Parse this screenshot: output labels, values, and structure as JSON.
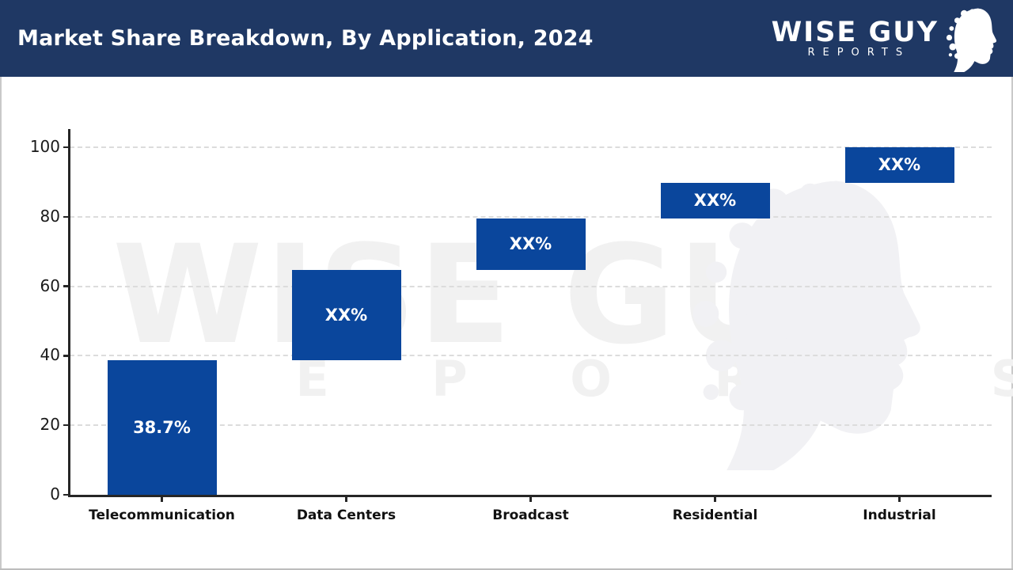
{
  "header": {
    "title": "Market Share Breakdown, By Application, 2024",
    "logo": {
      "line1": "WISE GUY",
      "line2": "REPORTS"
    }
  },
  "watermark": {
    "line1": "WISE GUY",
    "line2": "R E P O R T S"
  },
  "colors": {
    "header_bg": "#1f3864",
    "bar": "#0a469c",
    "grid": "#dcdcdc",
    "axis": "#262626",
    "watermark": "#f1f1f1",
    "value_label": "#ffffff"
  },
  "chart_data": {
    "type": "bar",
    "subtype": "waterfall",
    "title": "Market Share Breakdown, By Application, 2024",
    "categories": [
      "Telecommunication",
      "Data Centers",
      "Broadcast",
      "Residential",
      "Industrial"
    ],
    "segments": [
      {
        "category": "Telecommunication",
        "start": 0,
        "end": 38.7,
        "label": "38.7%"
      },
      {
        "category": "Data Centers",
        "start": 38.7,
        "end": 64.7,
        "label": "XX%"
      },
      {
        "category": "Broadcast",
        "start": 64.7,
        "end": 79.5,
        "label": "XX%"
      },
      {
        "category": "Residential",
        "start": 79.5,
        "end": 89.8,
        "label": "XX%"
      },
      {
        "category": "Industrial",
        "start": 89.8,
        "end": 100,
        "label": "XX%"
      }
    ],
    "yticks": [
      0,
      20,
      40,
      60,
      80,
      100
    ],
    "ylim": [
      0,
      105
    ],
    "xlabel": "",
    "ylabel": "",
    "legend": "none",
    "grid": "horizontal-dashed",
    "bar_color": "#0a469c"
  }
}
